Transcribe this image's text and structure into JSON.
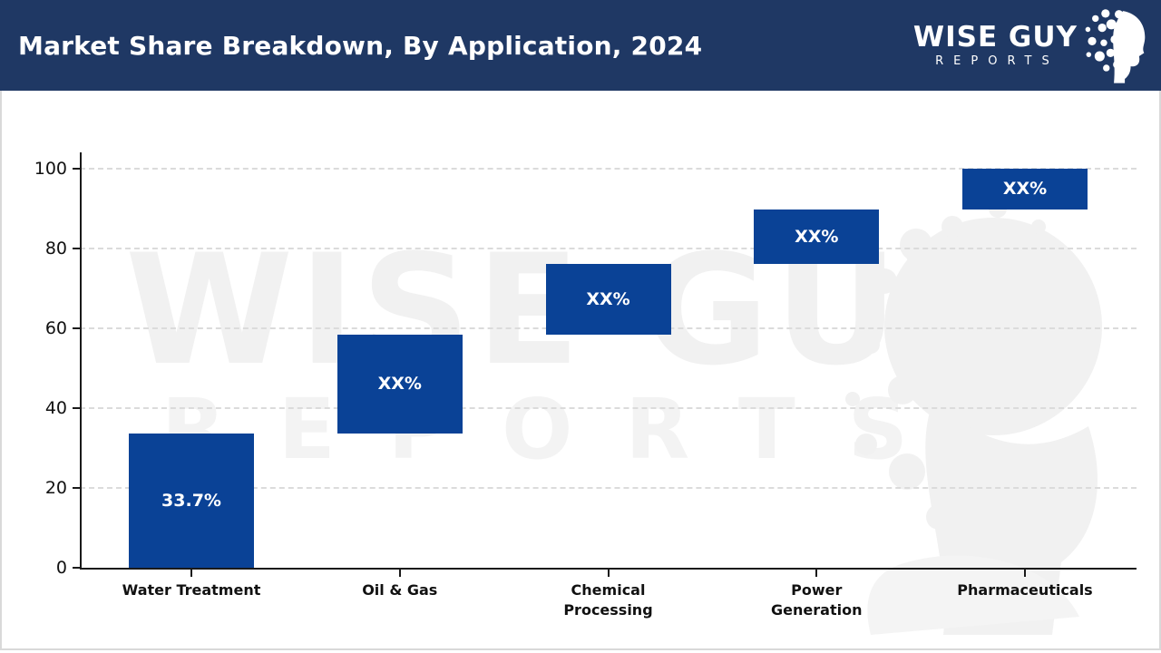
{
  "header": {
    "title": "Market Share Breakdown, By Application, 2024",
    "bg_color": "#1f3864",
    "logo": {
      "line1": "WISE GUY",
      "line2": "REPORTS"
    }
  },
  "watermark": {
    "line1": "WISE GUY",
    "line2": "REPORTS"
  },
  "chart_data": {
    "type": "bar",
    "subtype": "waterfall",
    "title": "Market Share Breakdown, By Application, 2024",
    "categories": [
      "Water Treatment",
      "Oil & Gas",
      "Chemical Processing",
      "Power Generation",
      "Pharmaceuticals"
    ],
    "segments": [
      {
        "category": "Water Treatment",
        "start": 0,
        "end": 33.7,
        "label": "33.7%"
      },
      {
        "category": "Oil & Gas",
        "start": 33.7,
        "end": 58.4,
        "label": "XX%"
      },
      {
        "category": "Chemical Processing",
        "start": 58.4,
        "end": 76.1,
        "label": "XX%"
      },
      {
        "category": "Power Generation",
        "start": 76.1,
        "end": 89.8,
        "label": "XX%"
      },
      {
        "category": "Pharmaceuticals",
        "start": 89.8,
        "end": 100,
        "label": "XX%"
      }
    ],
    "xlabel": "",
    "ylabel": "",
    "ylim": [
      0,
      100
    ],
    "yticks": [
      0,
      20,
      40,
      60,
      80,
      100
    ],
    "ytick_labels": [
      "0",
      "20",
      "40",
      "60",
      "80",
      "100"
    ],
    "grid": "horizontal-dashed",
    "legend": null,
    "bar_color": "#0a4296",
    "bar_label_color": "#ffffff",
    "axis_color": "#1a1a1a",
    "gridline_color": "#dbdbdb"
  }
}
